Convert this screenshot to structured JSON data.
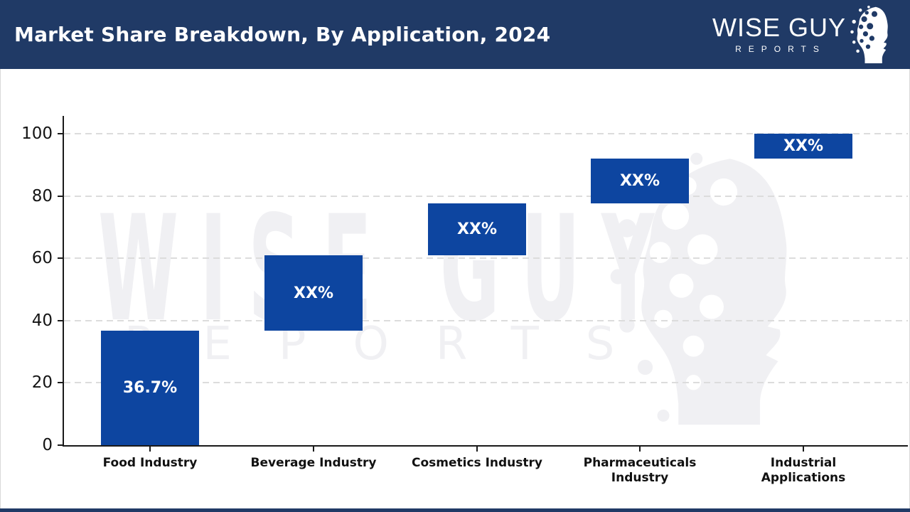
{
  "header": {
    "title": "Market Share Breakdown, By Application, 2024",
    "bg_color": "#203a66",
    "logo": {
      "wordmark": "WISE GUY",
      "subtext": "REPORTS"
    }
  },
  "watermark": {
    "wordmark": "WISE GUY",
    "subtext": "REPORTS"
  },
  "footer": {
    "bg_color": "#203a66"
  },
  "chart_data": {
    "type": "bar",
    "variant": "waterfall",
    "title": "Market Share Breakdown, By Application, 2024",
    "categories": [
      "Food Industry",
      "Beverage Industry",
      "Cosmetics Industry",
      "Pharmaceuticals Industry",
      "Industrial Applications"
    ],
    "category_label_lines": [
      [
        "Food Industry"
      ],
      [
        "Beverage Industry"
      ],
      [
        "Cosmetics Industry"
      ],
      [
        "Pharmaceuticals",
        "Industry"
      ],
      [
        "Industrial",
        "Applications"
      ]
    ],
    "segments": [
      {
        "category": "Food Industry",
        "label": "36.7%",
        "start": 0,
        "end": 36.7
      },
      {
        "category": "Beverage Industry",
        "label": "XX%",
        "start": 36.7,
        "end": 61.0
      },
      {
        "category": "Cosmetics Industry",
        "label": "XX%",
        "start": 61.0,
        "end": 77.6
      },
      {
        "category": "Pharmaceuticals Industry",
        "label": "XX%",
        "start": 77.6,
        "end": 92.0
      },
      {
        "category": "Industrial Applications",
        "label": "XX%",
        "start": 92.0,
        "end": 100.0
      }
    ],
    "ylim": [
      0,
      100
    ],
    "yticks": [
      0,
      20,
      40,
      60,
      80,
      100
    ],
    "grid": "horizontal-dashed",
    "legend": "none",
    "colors": {
      "bar": "#0d45a0",
      "bar_label": "#ffffff",
      "axis": "#1a1a1a",
      "grid": "#dcdcdc",
      "watermark": "#f0f0f3"
    }
  }
}
